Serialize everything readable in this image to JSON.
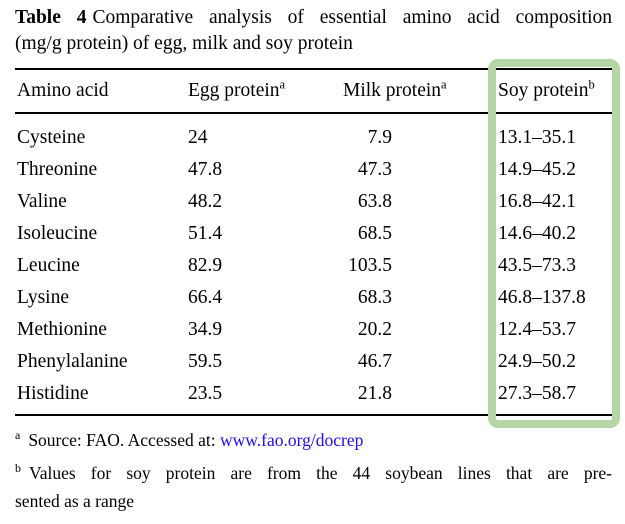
{
  "caption": {
    "label": "Table 4",
    "line1": "Comparative analysis of essential amino acid composition",
    "line2": "(mg/g protein) of egg, milk and soy protein"
  },
  "table": {
    "headers": [
      {
        "label": "Amino acid",
        "sup": ""
      },
      {
        "label": "Egg protein",
        "sup": "a"
      },
      {
        "label": "Milk protein",
        "sup": "a"
      },
      {
        "label": "Soy protein",
        "sup": "b"
      }
    ],
    "rows": [
      {
        "amino_acid": "Cysteine",
        "egg": "24",
        "milk": "7.9",
        "soy": "13.1–35.1"
      },
      {
        "amino_acid": "Threonine",
        "egg": "47.8",
        "milk": "47.3",
        "soy": "14.9–45.2"
      },
      {
        "amino_acid": "Valine",
        "egg": "48.2",
        "milk": "63.8",
        "soy": "16.8–42.1"
      },
      {
        "amino_acid": "Isoleucine",
        "egg": "51.4",
        "milk": "68.5",
        "soy": "14.6–40.2"
      },
      {
        "amino_acid": "Leucine",
        "egg": "82.9",
        "milk": "103.5",
        "soy": "43.5–73.3"
      },
      {
        "amino_acid": "Lysine",
        "egg": "66.4",
        "milk": "68.3",
        "soy": "46.8–137.8"
      },
      {
        "amino_acid": "Methionine",
        "egg": "34.9",
        "milk": "20.2",
        "soy": "12.4–53.7"
      },
      {
        "amino_acid": "Phenylalanine",
        "egg": "59.5",
        "milk": "46.7",
        "soy": "24.9–50.2"
      },
      {
        "amino_acid": "Histidine",
        "egg": "23.5",
        "milk": "21.8",
        "soy": "27.3–58.7"
      }
    ]
  },
  "footnotes": {
    "a": {
      "marker": "a",
      "text": "Source: FAO. Accessed at:",
      "link": "www.fao.org/docrep"
    },
    "b": {
      "marker": "b",
      "line1": "Values for soy protein are from the 44 soybean lines that are pre-",
      "line2": "sented as a range"
    }
  },
  "highlight": {
    "target": "soy-protein-column",
    "color": "#b6d6a6"
  },
  "colors": {
    "link": "#1e0ee6",
    "rule": "#000000",
    "text": "#000000",
    "background": "#ffffff"
  }
}
